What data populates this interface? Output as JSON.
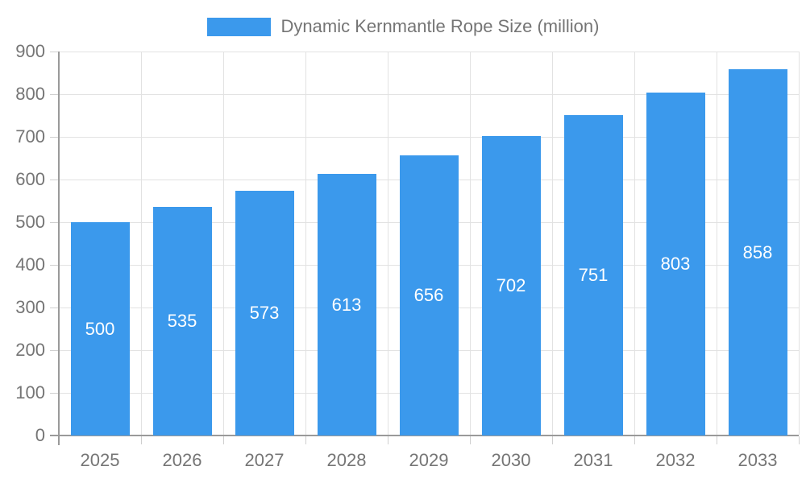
{
  "legend": {
    "label": "Dynamic Kernmantle Rope Size (million)"
  },
  "chart_data": {
    "type": "bar",
    "title": "Dynamic Kernmantle Rope Size (million)",
    "series_name": "Dynamic Kernmantle Rope Size (million)",
    "categories": [
      "2025",
      "2026",
      "2027",
      "2028",
      "2029",
      "2030",
      "2031",
      "2032",
      "2033"
    ],
    "values": [
      500,
      535,
      573,
      613,
      656,
      702,
      751,
      803,
      858
    ],
    "xlabel": "",
    "ylabel": "",
    "ylim": [
      0,
      900
    ],
    "ytick_step": 100,
    "yticks": [
      0,
      100,
      200,
      300,
      400,
      500,
      600,
      700,
      800,
      900
    ],
    "grid": true,
    "legend_position": "top",
    "bar_color": "#3B99EC",
    "bar_label_color": "#FFFFFF",
    "axis_text_color": "#757575",
    "grid_color": "#E2E2E2",
    "axis_line_color": "#9A9A9A",
    "tick_color": "#CFCFCF",
    "background_color": "#FFFFFF"
  }
}
